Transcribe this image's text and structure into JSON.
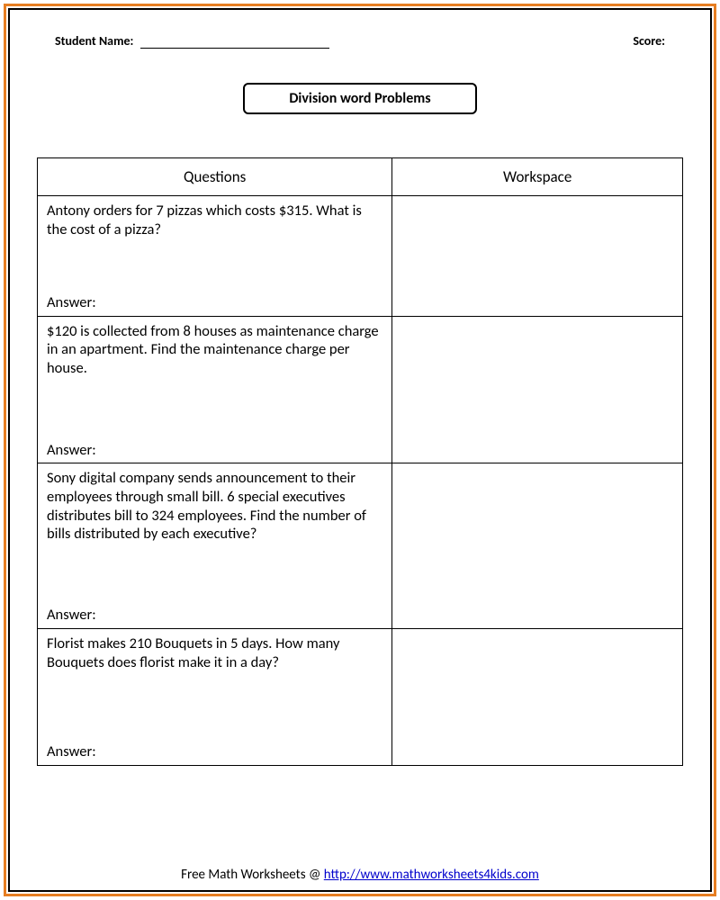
{
  "header": {
    "name_label": "Student Name:",
    "score_label": "Score:"
  },
  "title": "Division word Problems",
  "columns": {
    "questions": "Questions",
    "workspace": "Workspace"
  },
  "answer_label": "Answer:",
  "questions": [
    {
      "text": "Antony orders for 7 pizzas which costs $315. What is the cost of a pizza?",
      "min_h": 90
    },
    {
      "text": "$120 is collected from 8 houses as maintenance charge in an apartment. Find the maintenance charge per house.",
      "min_h": 120
    },
    {
      "text": "Sony digital company sends announcement to their employees through small bill. 6 special executives distributes bill to 324 employees. Find the number of bills distributed by each executive?",
      "min_h": 140
    },
    {
      "text": "Florist makes 210 Bouquets in 5 days. How many Bouquets does florist make it in a day?",
      "min_h": 108
    }
  ],
  "footer": {
    "prefix": "Free Math Worksheets @ ",
    "link": "http://www.mathworksheets4kids.com"
  },
  "style": {
    "outer_border_color": "#e67e22",
    "inner_border_color": "#000000",
    "text_color": "#000000",
    "link_color": "#0000cc",
    "background": "#ffffff",
    "title_fontsize": 16,
    "body_fontsize": 16.5,
    "header_fontsize": 14
  }
}
